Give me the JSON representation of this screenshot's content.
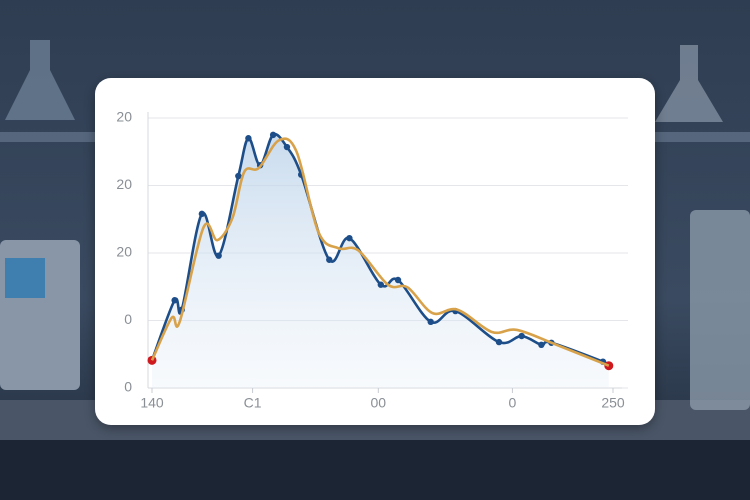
{
  "chart_data": {
    "type": "line",
    "xlim": [
      140,
      250
    ],
    "xticks": [
      140,
      {
        "value": 164,
        "label": "C1"
      },
      {
        "value": 194,
        "label": "00"
      },
      {
        "value": 226,
        "label": "0"
      },
      250
    ],
    "ylim": [
      0,
      4
    ],
    "yticks": [
      {
        "value": 0,
        "label": "0"
      },
      {
        "value": 1,
        "label": "0"
      },
      {
        "value": 2,
        "label": "20"
      },
      {
        "value": 3,
        "label": "20"
      },
      {
        "value": 4,
        "label": "20"
      }
    ],
    "grid": true,
    "series": [
      {
        "color": "#d8a24a",
        "markers": false,
        "x": [
          140,
          144.7,
          146.6,
          152.3,
          155.6,
          159.2,
          162.0,
          165.5,
          170.3,
          174.5,
          179.7,
          184.5,
          189.2,
          196.3,
          201.0,
          206.9,
          212.9,
          221.1,
          227.1,
          236.5,
          249
        ],
        "values": [
          0.41,
          1.04,
          0.98,
          2.38,
          2.19,
          2.52,
          3.2,
          3.26,
          3.67,
          3.5,
          2.31,
          2.07,
          2.04,
          1.53,
          1.49,
          1.11,
          1.16,
          0.83,
          0.86,
          0.64,
          0.33
        ]
      },
      {
        "color": "#1d4e89",
        "markers": true,
        "area": true,
        "endpoint_color": "#d0191f",
        "x": [
          140,
          145.4,
          147.1,
          151.9,
          155.9,
          160.6,
          163.0,
          165.8,
          168.9,
          172.2,
          175.6,
          182.3,
          187.1,
          194.6,
          198.7,
          206.5,
          212.4,
          222.8,
          228.2,
          232.9,
          235.3,
          247.6,
          249
        ],
        "values": [
          0.41,
          1.3,
          1.16,
          2.58,
          1.96,
          3.14,
          3.7,
          3.3,
          3.75,
          3.57,
          3.16,
          1.9,
          2.22,
          1.53,
          1.6,
          0.98,
          1.14,
          0.68,
          0.77,
          0.64,
          0.67,
          0.39,
          0.33
        ]
      }
    ]
  }
}
